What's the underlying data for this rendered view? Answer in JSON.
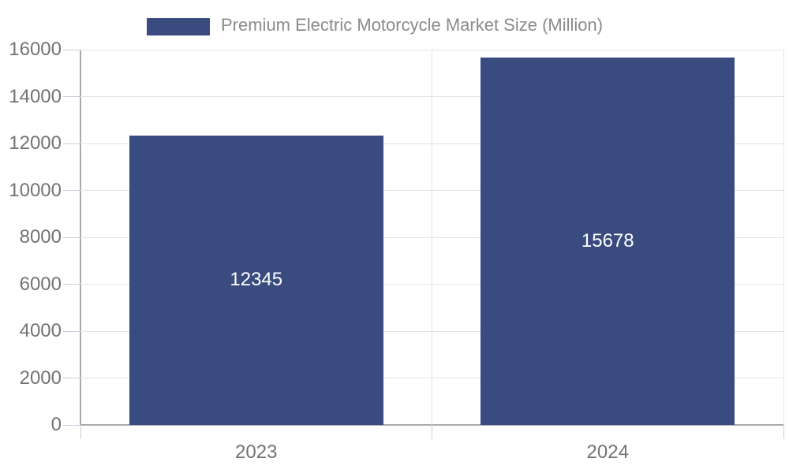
{
  "chart_data": {
    "type": "bar",
    "title": "Premium Electric Motorcycle Market Size (Million)",
    "legend": {
      "label": "Premium Electric Motorcycle Market Size (Million)",
      "position": "top-center"
    },
    "categories": [
      "2023",
      "2024"
    ],
    "series": [
      {
        "name": "Premium Electric Motorcycle Market Size (Million)",
        "values": [
          12345,
          15678
        ]
      }
    ],
    "data_labels": [
      "12345",
      "15678"
    ],
    "xlabel": "",
    "ylabel": "",
    "ylim": [
      0,
      16000
    ],
    "yticks": [
      0,
      2000,
      4000,
      6000,
      8000,
      10000,
      12000,
      14000,
      16000
    ],
    "grid": true,
    "colors": {
      "bar": "#3A4B80",
      "legend_text": "#8B8B8B",
      "axis_tick_label": "#737373",
      "bar_label": "#FFFFFF",
      "axis_line": "#A9A9A9",
      "gridline": "#E4E4E4",
      "tick": "#C9CEDC"
    }
  }
}
